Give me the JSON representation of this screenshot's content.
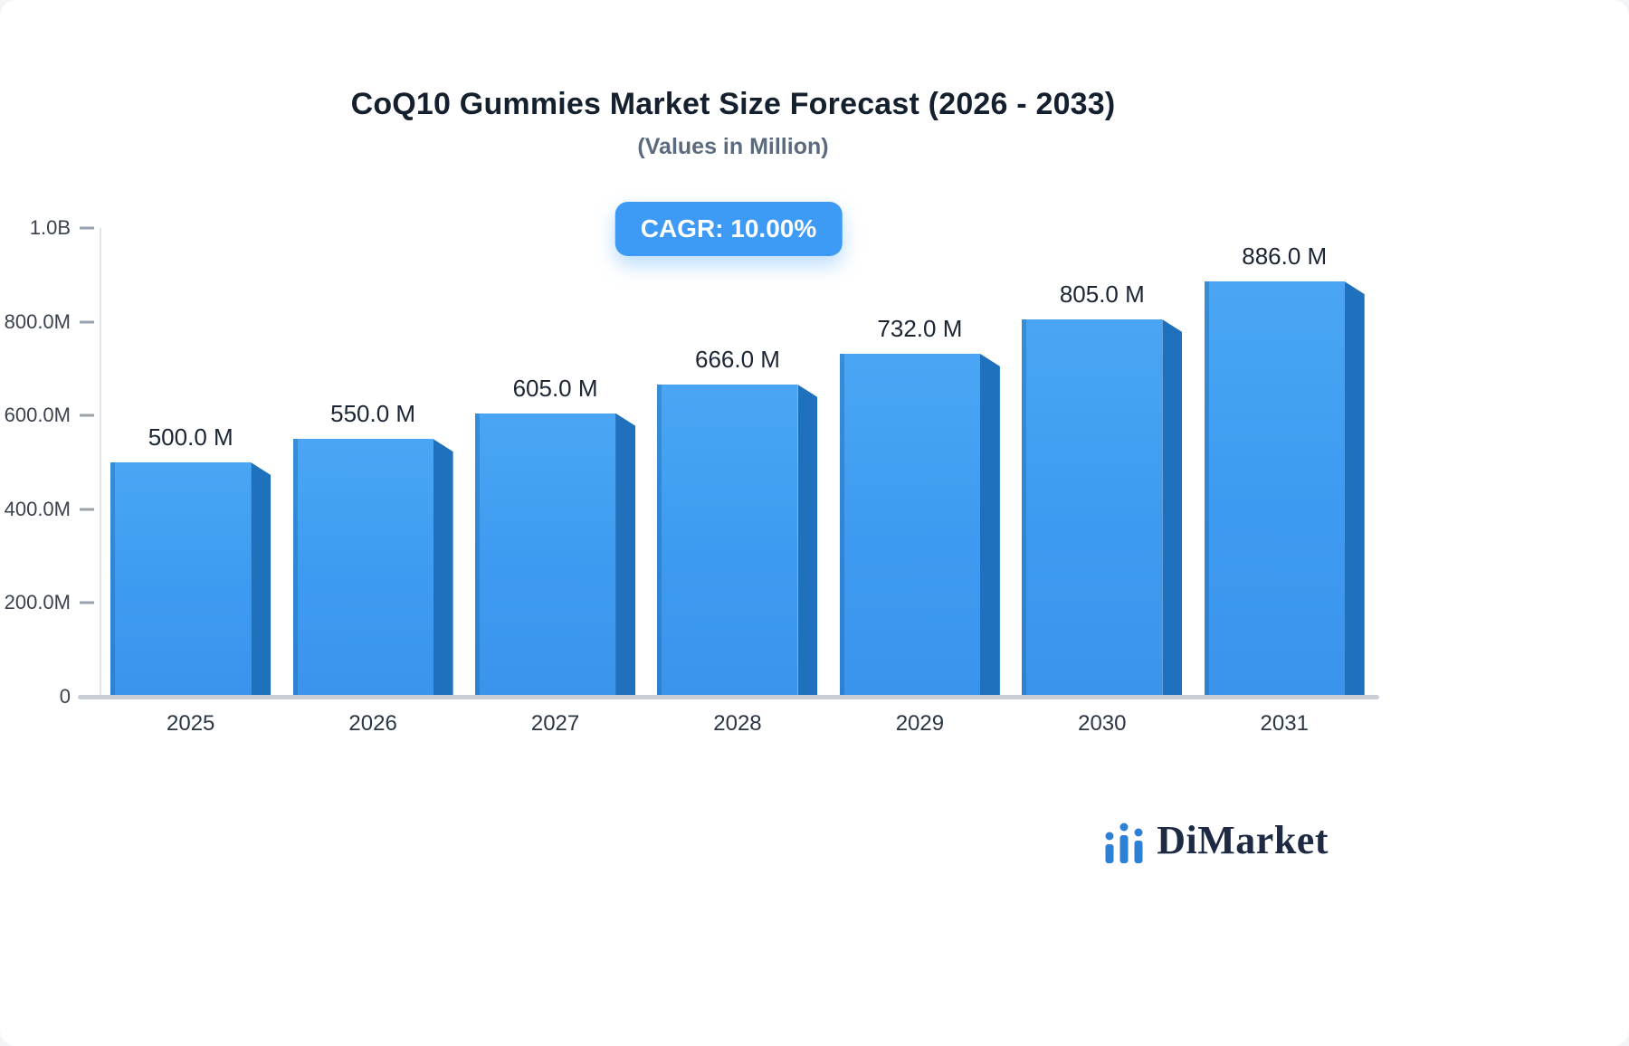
{
  "header": {
    "title": "CoQ10 Gummies Market Size Forecast (2026 - 2033)",
    "subtitle": "(Values in Million)"
  },
  "badge": {
    "label": "CAGR: 10.00%",
    "bg_color": "#3d9bf5",
    "text_color": "#ffffff"
  },
  "logo": {
    "text": "DiMarket",
    "icon": "bar-chart-icon",
    "text_color": "#1e2a44",
    "icon_color": "#2e7fd6"
  },
  "chart_data": {
    "type": "bar",
    "title": "CoQ10 Gummies Market Size Forecast (2026 - 2033)",
    "subtitle": "(Values in Million)",
    "categories": [
      "2025",
      "2026",
      "2027",
      "2028",
      "2029",
      "2030",
      "2031"
    ],
    "values": [
      500.0,
      550.0,
      605.0,
      666.0,
      732.0,
      805.0,
      886.0
    ],
    "value_labels": [
      "500.0 M",
      "550.0 M",
      "605.0 M",
      "666.0 M",
      "732.0 M",
      "805.0 M",
      "886.0 M"
    ],
    "xlabel": "",
    "ylabel": "",
    "ylim": [
      0,
      1000
    ],
    "yticks": [
      {
        "label": "0",
        "value": 0
      },
      {
        "label": "200.0M",
        "value": 200
      },
      {
        "label": "400.0M",
        "value": 400
      },
      {
        "label": "600.0M",
        "value": 600
      },
      {
        "label": "800.0M",
        "value": 800
      },
      {
        "label": "1.0B",
        "value": 1000
      }
    ],
    "grid": false,
    "legend": false,
    "bar_face_color": "#3f9bf0",
    "bar_side_color": "#2071bd",
    "annotation": "CAGR: 10.00%"
  }
}
